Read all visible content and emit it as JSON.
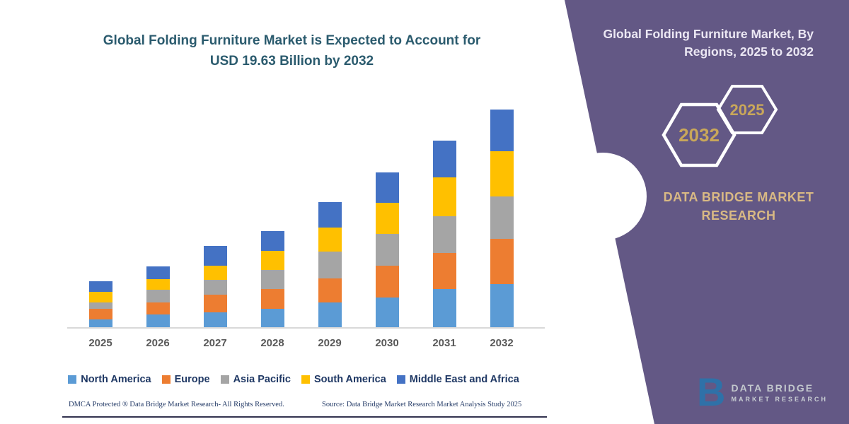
{
  "chart": {
    "title_line1": "Global Folding Furniture Market is Expected to Account for",
    "title_line2": "USD 19.63 Billion by 2032"
  },
  "chart_data": {
    "type": "bar",
    "stacked": true,
    "title": "Global Folding Furniture Market is Expected to Account for USD 19.63 Billion by 2032",
    "unit": "USD Billion",
    "categories": [
      "2025",
      "2026",
      "2027",
      "2028",
      "2029",
      "2030",
      "2031",
      "2032"
    ],
    "series": [
      {
        "name": "North America",
        "color": "#5b9bd5",
        "values": [
          0.78,
          1.21,
          1.38,
          1.7,
          2.27,
          2.75,
          3.47,
          3.92
        ]
      },
      {
        "name": "Europe",
        "color": "#ed7d31",
        "values": [
          0.95,
          1.06,
          1.59,
          1.8,
          2.18,
          2.86,
          3.24,
          4.06
        ]
      },
      {
        "name": "Asia Pacific",
        "color": "#a5a5a5",
        "values": [
          0.57,
          1.16,
          1.33,
          1.7,
          2.39,
          2.86,
          3.34,
          3.87
        ]
      },
      {
        "name": "South America",
        "color": "#ffc000",
        "values": [
          0.95,
          0.95,
          1.31,
          1.73,
          2.16,
          2.75,
          3.49,
          4.02
        ]
      },
      {
        "name": "Middle East and Africa",
        "color": "#4472c4",
        "values": [
          0.91,
          1.16,
          1.75,
          1.76,
          2.29,
          2.75,
          3.33,
          3.75
        ]
      }
    ],
    "totals": [
      4.16,
      5.54,
      7.36,
      8.69,
      11.29,
      13.97,
      16.87,
      19.63
    ],
    "ylim": [
      0,
      20
    ],
    "grid": false,
    "legend_position": "bottom",
    "xlabel": "",
    "ylabel": ""
  },
  "sidebar": {
    "heading_line1": "Global Folding Furniture Market, By",
    "heading_line2": "Regions, 2025 to 2032",
    "hexagons": [
      {
        "label": "2032"
      },
      {
        "label": "2025"
      }
    ],
    "brand_line1": "DATA BRIDGE MARKET",
    "brand_line2": "RESEARCH",
    "panel_color": "#635885",
    "hex_label_color": "#c9a75a"
  },
  "footer": {
    "left": "DMCA Protected ® Data Bridge Market Research-  All Rights Reserved.",
    "source": "Source: Data Bridge Market Research  Market Analysis Study 2025"
  },
  "watermark": {
    "monogram": "B",
    "line1": "DATA BRIDGE",
    "line2": "MARKET RESEARCH"
  }
}
